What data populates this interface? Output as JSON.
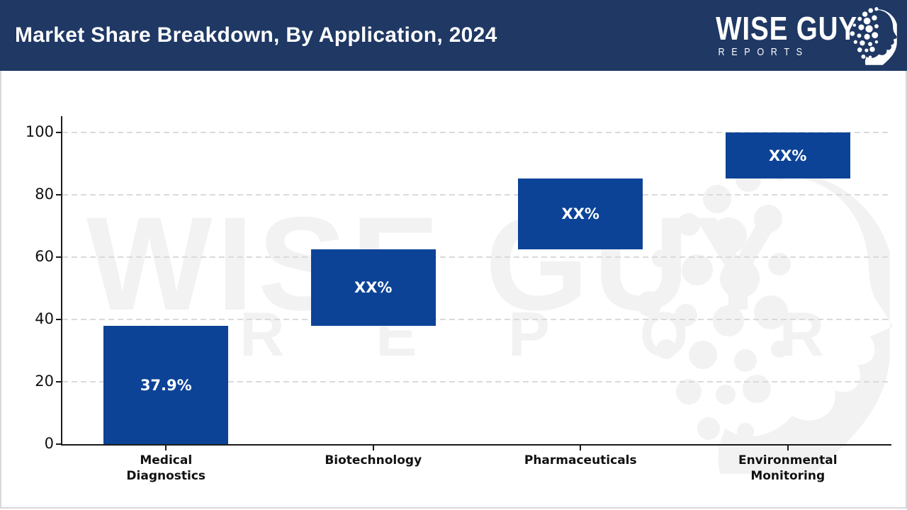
{
  "header": {
    "title": "Market Share Breakdown, By Application, 2024",
    "bg_color": "#1f3864",
    "logo": {
      "line1": "WISE GUY",
      "line2": "REPORTS",
      "icon": "head-dots-icon"
    }
  },
  "watermark": {
    "line1": "WISE GUY",
    "line2": "R E P O R T S",
    "icon": "head-dots-icon"
  },
  "chart_data": {
    "type": "bar",
    "subtype": "waterfall",
    "title": "Market Share Breakdown, By Application, 2024",
    "xlabel": "",
    "ylabel": "",
    "categories": [
      "Medical Diagnostics",
      "Biotechnology",
      "Pharmaceuticals",
      "Environmental Monitoring"
    ],
    "category_label_lines": [
      [
        "Medical",
        "Diagnostics"
      ],
      [
        "Biotechnology"
      ],
      [
        "Pharmaceuticals"
      ],
      [
        "Environmental",
        "Monitoring"
      ]
    ],
    "segments": [
      {
        "category": "Medical Diagnostics",
        "start": 0,
        "end": 37.9,
        "label": "37.9%"
      },
      {
        "category": "Biotechnology",
        "start": 37.9,
        "end": 62.4,
        "label": "XX%"
      },
      {
        "category": "Pharmaceuticals",
        "start": 62.4,
        "end": 85.2,
        "label": "XX%"
      },
      {
        "category": "Environmental Monitoring",
        "start": 85.2,
        "end": 100,
        "label": "XX%"
      }
    ],
    "yticks": [
      0,
      20,
      40,
      60,
      80,
      100
    ],
    "ylim": [
      0,
      105
    ],
    "grid": "horizontal-dashed",
    "legend": "none",
    "bar_color": "#0c4397",
    "bar_label_color": "#ffffff"
  }
}
